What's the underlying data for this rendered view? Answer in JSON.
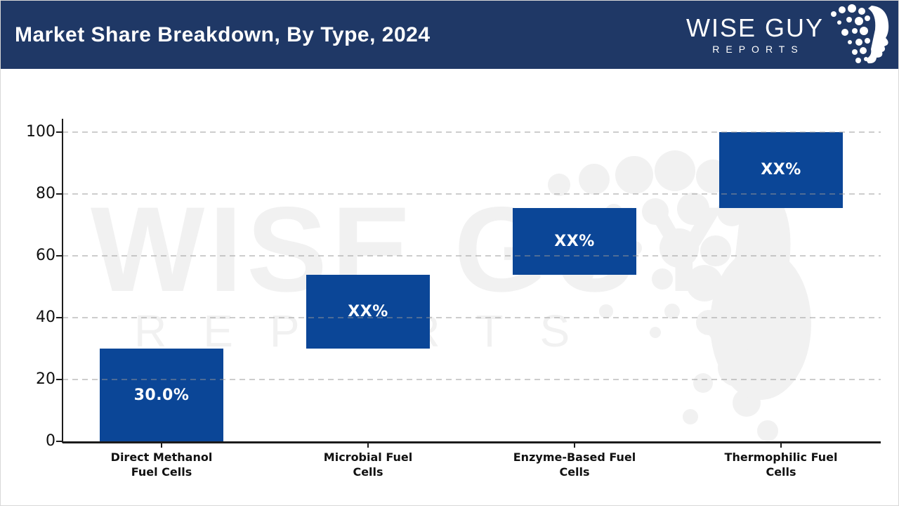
{
  "header": {
    "title": "Market Share Breakdown, By Type, 2024",
    "brand_line1": "WISE GUY",
    "brand_line2": "REPORTS"
  },
  "watermark": {
    "line1": "WISE GUY",
    "line2": "REPORTS"
  },
  "colors": {
    "header_bg": "#1F3866",
    "bar_fill": "#0B4697",
    "bar_label": "#ffffff",
    "watermark": "#f1f1f1"
  },
  "chart_data": {
    "type": "bar",
    "subtype": "waterfall",
    "title": "Market Share Breakdown, By Type, 2024",
    "categories": [
      "Direct Methanol\nFuel Cells",
      "Microbial Fuel\nCells",
      "Enzyme-Based Fuel\nCells",
      "Thermophilic Fuel\nCells"
    ],
    "segments": [
      {
        "category": "Direct Methanol Fuel Cells",
        "start": 0,
        "end": 30,
        "label": "30.0%"
      },
      {
        "category": "Microbial Fuel Cells",
        "start": 30,
        "end": 53.8,
        "label": "XX%"
      },
      {
        "category": "Enzyme-Based Fuel Cells",
        "start": 53.8,
        "end": 75.5,
        "label": "XX%"
      },
      {
        "category": "Thermophilic Fuel Cells",
        "start": 75.5,
        "end": 100,
        "label": "XX%"
      }
    ],
    "values": [
      30.0,
      23.8,
      21.7,
      24.5
    ],
    "yticks": [
      "0",
      "20",
      "40",
      "60",
      "80",
      "100"
    ],
    "ylim": [
      0,
      100
    ],
    "xlabel": "",
    "ylabel": "",
    "grid": true,
    "grid_style": "dashed",
    "legend": "none"
  }
}
